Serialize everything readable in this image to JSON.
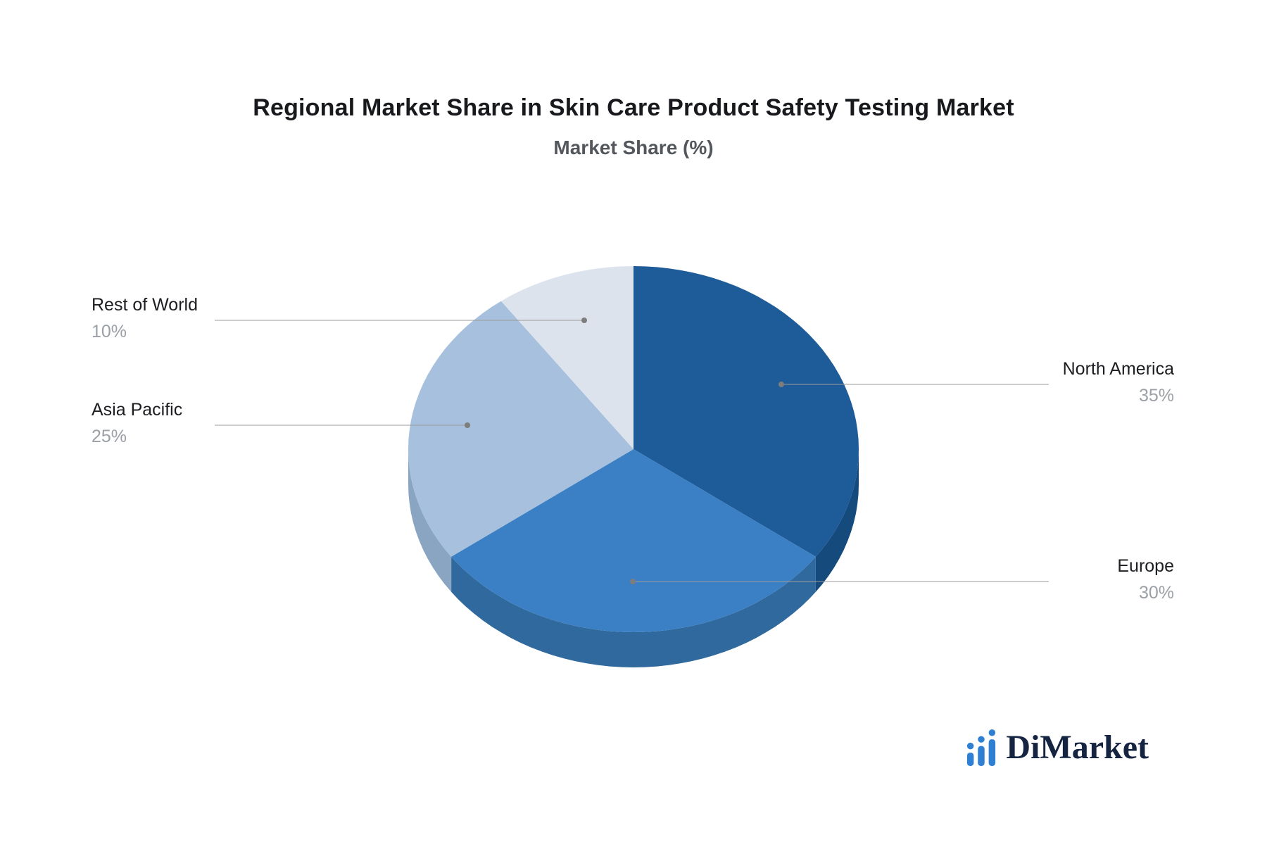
{
  "chart_data": {
    "type": "pie",
    "title": "Regional Market Share in Skin Care Product Safety Testing Market",
    "subtitle": "Market Share (%)",
    "unit": "%",
    "effect": "3d",
    "start_angle_deg": 0,
    "direction": "clockwise",
    "legend_position": "none",
    "label_layout": "callouts-with-leader-lines",
    "slices": [
      {
        "label": "North America",
        "value": 35,
        "display": "35%",
        "color": "#1e5c99",
        "side_color": "#154a7d"
      },
      {
        "label": "Europe",
        "value": 30,
        "display": "30%",
        "color": "#3b80c4",
        "side_color": "#30699e"
      },
      {
        "label": "Asia Pacific",
        "value": 25,
        "display": "25%",
        "color": "#a6c0dd",
        "side_color": "#8aa5c2"
      },
      {
        "label": "Rest of World",
        "value": 10,
        "display": "10%",
        "color": "#dde3ed",
        "side_color": "#b9c2d2"
      }
    ],
    "leader_line_color": "#9b9b9b",
    "leader_dot_color": "#7d7d7d"
  },
  "branding": {
    "logo_text": "DiMarket",
    "logo_color": "#2f7fd3",
    "logo_text_color": "#152441"
  }
}
